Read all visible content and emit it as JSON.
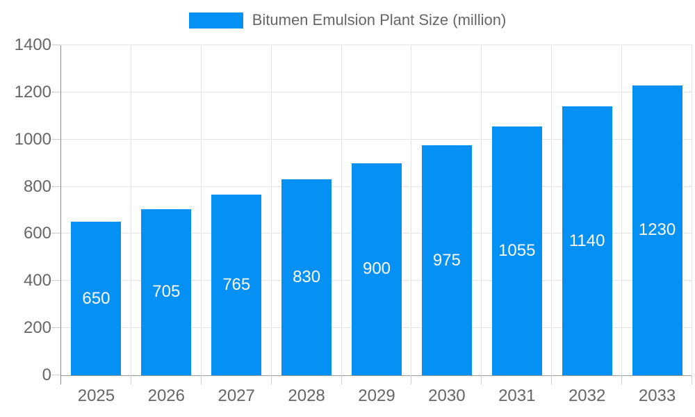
{
  "chart_data": {
    "type": "bar",
    "title": "Bitumen Emulsion Plant Size (million)",
    "categories": [
      "2025",
      "2026",
      "2027",
      "2028",
      "2029",
      "2030",
      "2031",
      "2032",
      "2033"
    ],
    "values": [
      650,
      705,
      765,
      830,
      900,
      975,
      1055,
      1140,
      1230
    ],
    "xlabel": "",
    "ylabel": "",
    "ylim": [
      0,
      1400
    ],
    "yticks": [
      0,
      200,
      400,
      600,
      800,
      1000,
      1200,
      1400
    ],
    "grid": true,
    "legend_position": "top-center",
    "colors": {
      "bar": "#0590F4",
      "bar_label": "#ffffff",
      "axis_text": "#666666",
      "grid_line": "#e4e4e4",
      "tick_line": "#cccccc",
      "y_axis_line": "#8a8a8a",
      "x_axis_line": "#999999",
      "background": "#ffffff"
    }
  }
}
